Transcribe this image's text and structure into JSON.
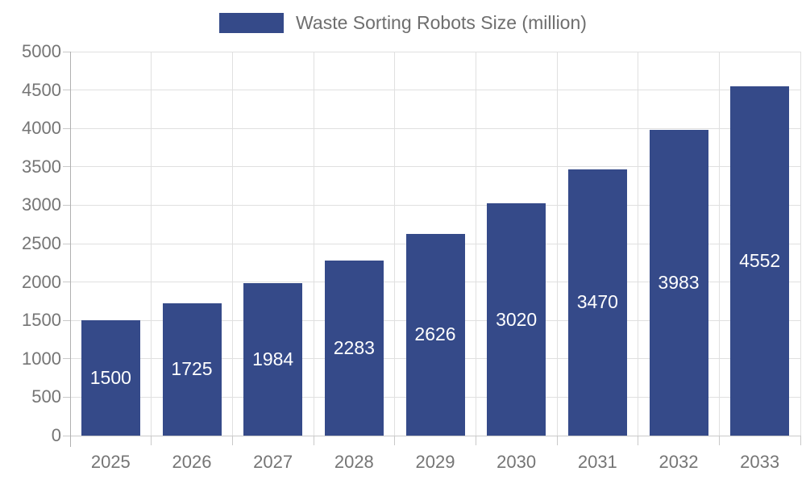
{
  "chart_data": {
    "type": "bar",
    "title": "Waste Sorting Robots Size (million)",
    "legend": {
      "label": "Waste Sorting Robots Size (million)",
      "position": "top"
    },
    "categories": [
      "2025",
      "2026",
      "2027",
      "2028",
      "2029",
      "2030",
      "2031",
      "2032",
      "2033"
    ],
    "values": [
      1500,
      1725,
      1984,
      2283,
      2626,
      3020,
      3470,
      3983,
      4552
    ],
    "xlabel": "",
    "ylabel": "",
    "ylim": [
      0,
      5000
    ],
    "ytick_step": 500,
    "grid": true,
    "colors": {
      "bar": "#354A89",
      "axis_label": "#757575",
      "legend_label": "#6e6e6e",
      "grid_line": "#e0e0e0",
      "axis_line": "#b0b0b0",
      "minor_tick": "#c9c9c9",
      "value_label": "#ffffff",
      "background": "#ffffff"
    }
  }
}
